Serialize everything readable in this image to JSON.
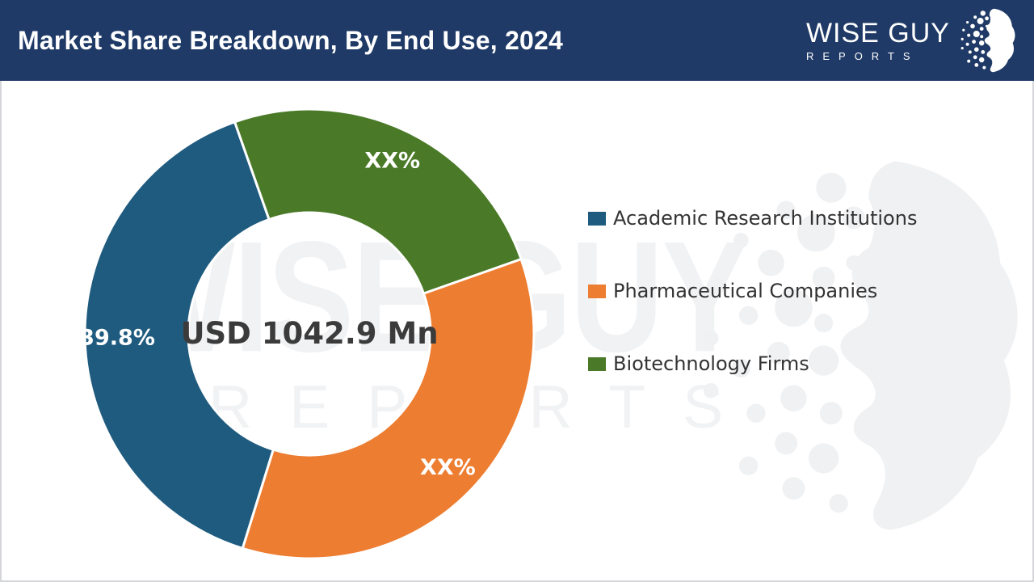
{
  "page": {
    "background": "#ffffff",
    "border_color": "#d4d6da"
  },
  "header": {
    "title": "Market Share Breakdown, By End Use, 2024",
    "background": "#1f3a66",
    "text_color": "#ffffff",
    "logo": {
      "name": "Wise Guy Reports",
      "line1": "WISE GUY",
      "line2": "REPORTS"
    }
  },
  "watermark": {
    "line1": "WISE GUY",
    "line2": "REPORTS"
  },
  "chart_data": {
    "type": "donut",
    "title": "Market Share Breakdown, By End Use, 2024",
    "center_label": "USD 1042.9 Mn",
    "start_angle_deg": 197.3,
    "draw_order": [
      0,
      2,
      1
    ],
    "legend_position": "right",
    "inner_radius_ratio": 0.54,
    "series": [
      {
        "name": "Academic Research Institutions",
        "label": "39.8%",
        "value": 39.8,
        "color": "#1f5b7f"
      },
      {
        "name": "Pharmaceutical Companies",
        "label": "XX%",
        "value": 35.2,
        "color": "#ed7d31"
      },
      {
        "name": "Biotechnology Firms",
        "label": "XX%",
        "value": 25.0,
        "color": "#4a7a28"
      }
    ]
  }
}
